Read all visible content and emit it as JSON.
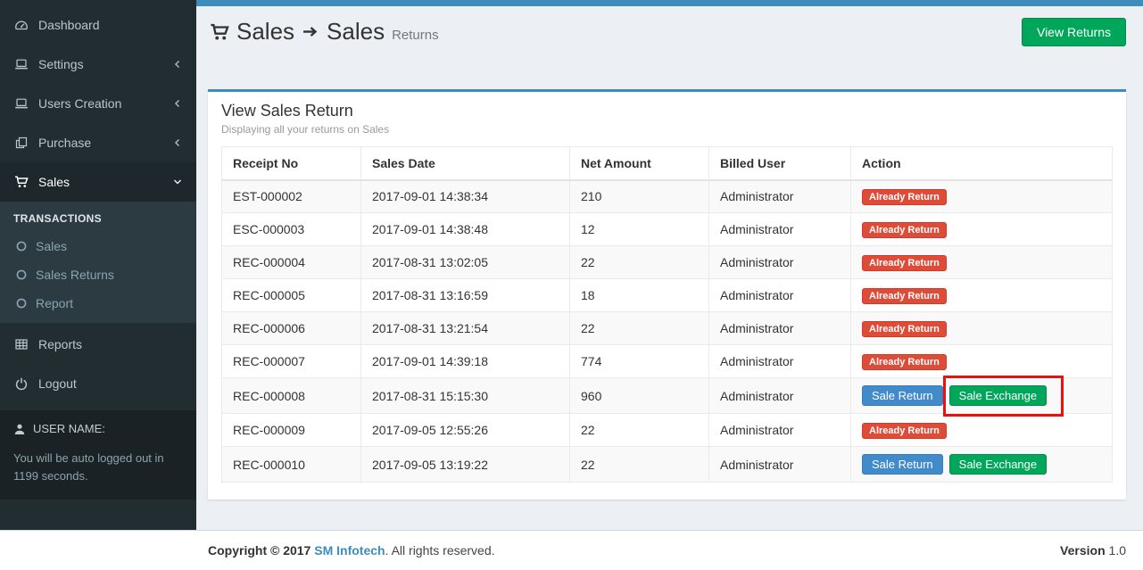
{
  "sidebar": {
    "menu": [
      {
        "label": "Dashboard",
        "icon": "dashboard-icon",
        "expandable": false,
        "active": false
      },
      {
        "label": "Settings",
        "icon": "laptop-icon",
        "expandable": true,
        "active": false
      },
      {
        "label": "Users Creation",
        "icon": "laptop-icon",
        "expandable": true,
        "active": false
      },
      {
        "label": "Purchase",
        "icon": "copy-icon",
        "expandable": true,
        "active": false
      },
      {
        "label": "Sales",
        "icon": "cart-icon",
        "expandable": true,
        "active": true,
        "expanded": true
      }
    ],
    "submenu_header": "TRANSACTIONS",
    "submenu": [
      {
        "label": "Sales"
      },
      {
        "label": "Sales Returns"
      },
      {
        "label": "Report"
      }
    ],
    "menu_bottom": [
      {
        "label": "Reports",
        "icon": "table-icon"
      },
      {
        "label": "Logout",
        "icon": "power-icon"
      }
    ],
    "user_panel": {
      "label": "USER NAME:",
      "note": "You will be auto logged out in 1199 seconds."
    }
  },
  "header": {
    "module": "Sales",
    "page": "Sales",
    "page_sub": "Returns",
    "action_button": "View Returns"
  },
  "panel": {
    "title": "View Sales Return",
    "subtitle": "Displaying all your returns on Sales"
  },
  "table": {
    "columns": [
      "Receipt No",
      "Sales Date",
      "Net Amount",
      "Billed User",
      "Action"
    ],
    "action_buttons": {
      "already_return": {
        "label": "Already Return",
        "css": "btn-danger btn-xs"
      },
      "sale_return": {
        "label": "Sale Return",
        "css": "btn-primary btn-sm"
      },
      "sale_exchange": {
        "label": "Sale Exchange",
        "css": "btn-success btn-sm"
      }
    },
    "rows": [
      {
        "receipt_no": "EST-000002",
        "sales_date": "2017-09-01 14:38:34",
        "net_amount": "210",
        "billed_user": "Administrator",
        "actions": [
          "already_return"
        ],
        "annotated_action": null
      },
      {
        "receipt_no": "ESC-000003",
        "sales_date": "2017-09-01 14:38:48",
        "net_amount": "12",
        "billed_user": "Administrator",
        "actions": [
          "already_return"
        ],
        "annotated_action": null
      },
      {
        "receipt_no": "REC-000004",
        "sales_date": "2017-08-31 13:02:05",
        "net_amount": "22",
        "billed_user": "Administrator",
        "actions": [
          "already_return"
        ],
        "annotated_action": null
      },
      {
        "receipt_no": "REC-000005",
        "sales_date": "2017-08-31 13:16:59",
        "net_amount": "18",
        "billed_user": "Administrator",
        "actions": [
          "already_return"
        ],
        "annotated_action": null
      },
      {
        "receipt_no": "REC-000006",
        "sales_date": "2017-08-31 13:21:54",
        "net_amount": "22",
        "billed_user": "Administrator",
        "actions": [
          "already_return"
        ],
        "annotated_action": null
      },
      {
        "receipt_no": "REC-000007",
        "sales_date": "2017-09-01 14:39:18",
        "net_amount": "774",
        "billed_user": "Administrator",
        "actions": [
          "already_return"
        ],
        "annotated_action": null
      },
      {
        "receipt_no": "REC-000008",
        "sales_date": "2017-08-31 15:15:30",
        "net_amount": "960",
        "billed_user": "Administrator",
        "actions": [
          "sale_return",
          "sale_exchange"
        ],
        "annotated_action": "sale_exchange"
      },
      {
        "receipt_no": "REC-000009",
        "sales_date": "2017-09-05 12:55:26",
        "net_amount": "22",
        "billed_user": "Administrator",
        "actions": [
          "already_return"
        ],
        "annotated_action": null
      },
      {
        "receipt_no": "REC-000010",
        "sales_date": "2017-09-05 13:19:22",
        "net_amount": "22",
        "billed_user": "Administrator",
        "actions": [
          "sale_return",
          "sale_exchange"
        ],
        "annotated_action": null
      }
    ]
  },
  "footer": {
    "copyright_prefix": "Copyright © 2017",
    "company": "SM Infotech",
    "copyright_suffix": ". All rights reserved.",
    "version_label": "Version",
    "version_value": "1.0"
  },
  "colors": {
    "sidebar_bg": "#222d32",
    "sidebar_active_bg": "#1e282c",
    "submenu_bg": "#2c3b41",
    "user_panel_bg": "#1a2226",
    "content_bg": "#ecf0f5",
    "accent_blue": "#3c8dbc",
    "button_green": "#00a65a",
    "button_blue": "#428bca",
    "button_red": "#dd4b39",
    "annotation_red": "#e8120e"
  }
}
